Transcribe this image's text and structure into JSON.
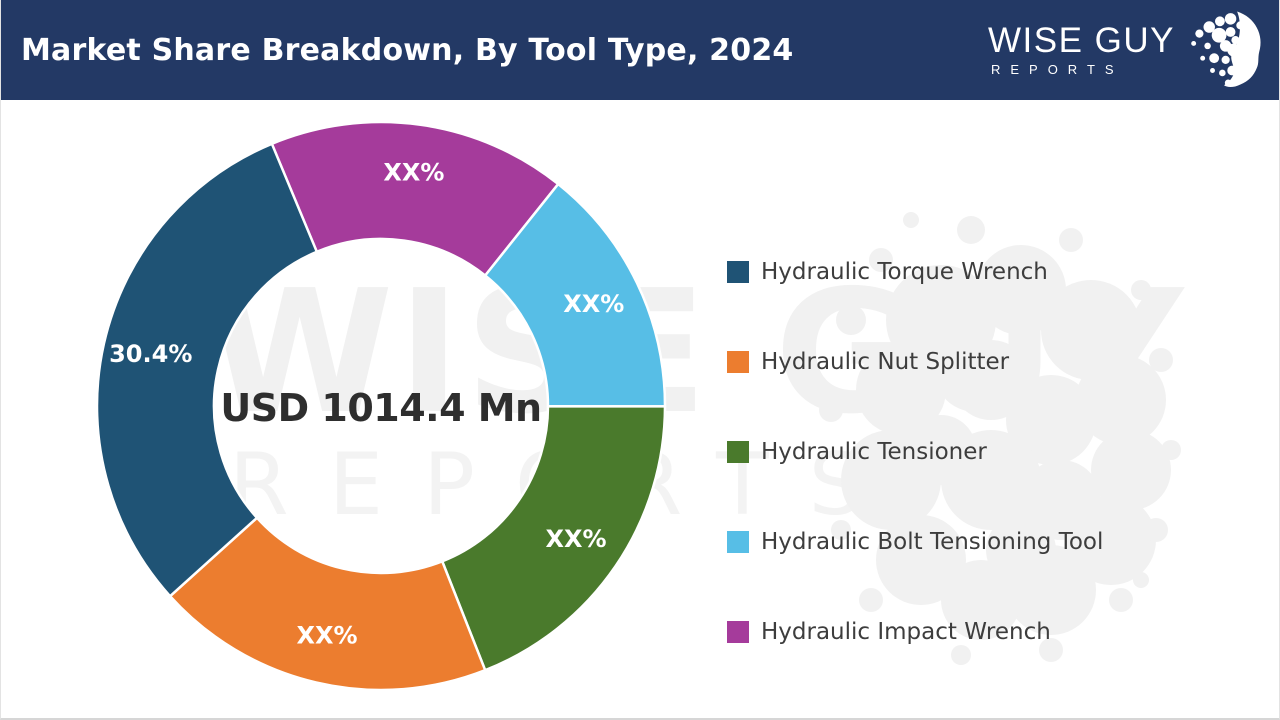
{
  "header": {
    "title": "Market Share Breakdown, By Tool Type, 2024",
    "logo": {
      "line1": "WISE GUY",
      "line2": "REPORTS"
    }
  },
  "watermark": {
    "line1": "WISE GUY",
    "line2": "REPORTS"
  },
  "colors": {
    "header_bg": "#233965",
    "center_text": "#2E2E2E",
    "legend_text": "#3D3D3D",
    "watermark": "#F1F1F1"
  },
  "chart_data": {
    "type": "pie",
    "subtype": "donut",
    "title": "Market Share Breakdown, By Tool Type, 2024",
    "center_label": "USD 1014.4 Mn",
    "legend_position": "right",
    "start_angle_deg": -22.6,
    "slices": [
      {
        "label": "Hydraulic Torque Wrench",
        "display_value": "30.4%",
        "value": 30.4,
        "color": "#1F5375"
      },
      {
        "label": "Hydraulic Nut Splitter",
        "display_value": "XX%",
        "value": 19.3,
        "color": "#EC7D2F"
      },
      {
        "label": "Hydraulic Tensioner",
        "display_value": "XX%",
        "value": 19.0,
        "color": "#4A7A2C"
      },
      {
        "label": "Hydraulic Bolt Tensioning Tool",
        "display_value": "XX%",
        "value": 14.3,
        "color": "#57BEE6"
      },
      {
        "label": "Hydraulic Impact Wrench",
        "display_value": "XX%",
        "value": 17.0,
        "color": "#A53B9B"
      }
    ]
  }
}
